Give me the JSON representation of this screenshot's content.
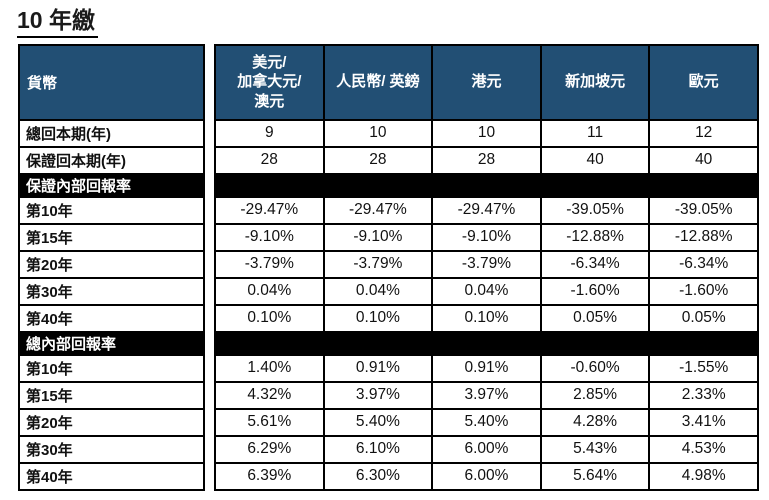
{
  "title": "10 年繳",
  "colors": {
    "header_bg": "#224F74",
    "section_bg": "#000000",
    "header_text": "#ffffff",
    "body_text": "#111111",
    "border": "#000000"
  },
  "table": {
    "currency_label": "貨幣",
    "columns": [
      "美元/\n加拿大元/\n澳元",
      "人民幣/ 英鎊",
      "港元",
      "新加坡元",
      "歐元"
    ],
    "rows": [
      {
        "type": "data",
        "label": "總回本期(年)",
        "values": [
          "9",
          "10",
          "10",
          "11",
          "12"
        ]
      },
      {
        "type": "data",
        "label": "保證回本期(年)",
        "values": [
          "28",
          "28",
          "28",
          "40",
          "40"
        ]
      },
      {
        "type": "section",
        "label": "保證內部回報率",
        "values": []
      },
      {
        "type": "data",
        "label": "第10年",
        "values": [
          "-29.47%",
          "-29.47%",
          "-29.47%",
          "-39.05%",
          "-39.05%"
        ]
      },
      {
        "type": "data",
        "label": "第15年",
        "values": [
          "-9.10%",
          "-9.10%",
          "-9.10%",
          "-12.88%",
          "-12.88%"
        ]
      },
      {
        "type": "data",
        "label": "第20年",
        "values": [
          "-3.79%",
          "-3.79%",
          "-3.79%",
          "-6.34%",
          "-6.34%"
        ]
      },
      {
        "type": "data",
        "label": "第30年",
        "values": [
          "0.04%",
          "0.04%",
          "0.04%",
          "-1.60%",
          "-1.60%"
        ]
      },
      {
        "type": "data",
        "label": "第40年",
        "values": [
          "0.10%",
          "0.10%",
          "0.10%",
          "0.05%",
          "0.05%"
        ]
      },
      {
        "type": "section",
        "label": "總內部回報率",
        "values": []
      },
      {
        "type": "data",
        "label": "第10年",
        "values": [
          "1.40%",
          "0.91%",
          "0.91%",
          "-0.60%",
          "-1.55%"
        ]
      },
      {
        "type": "data",
        "label": "第15年",
        "values": [
          "4.32%",
          "3.97%",
          "3.97%",
          "2.85%",
          "2.33%"
        ]
      },
      {
        "type": "data",
        "label": "第20年",
        "values": [
          "5.61%",
          "5.40%",
          "5.40%",
          "4.28%",
          "3.41%"
        ]
      },
      {
        "type": "data",
        "label": "第30年",
        "values": [
          "6.29%",
          "6.10%",
          "6.00%",
          "5.43%",
          "4.53%"
        ]
      },
      {
        "type": "data",
        "label": "第40年",
        "values": [
          "6.39%",
          "6.30%",
          "6.00%",
          "5.64%",
          "4.98%"
        ]
      }
    ]
  }
}
